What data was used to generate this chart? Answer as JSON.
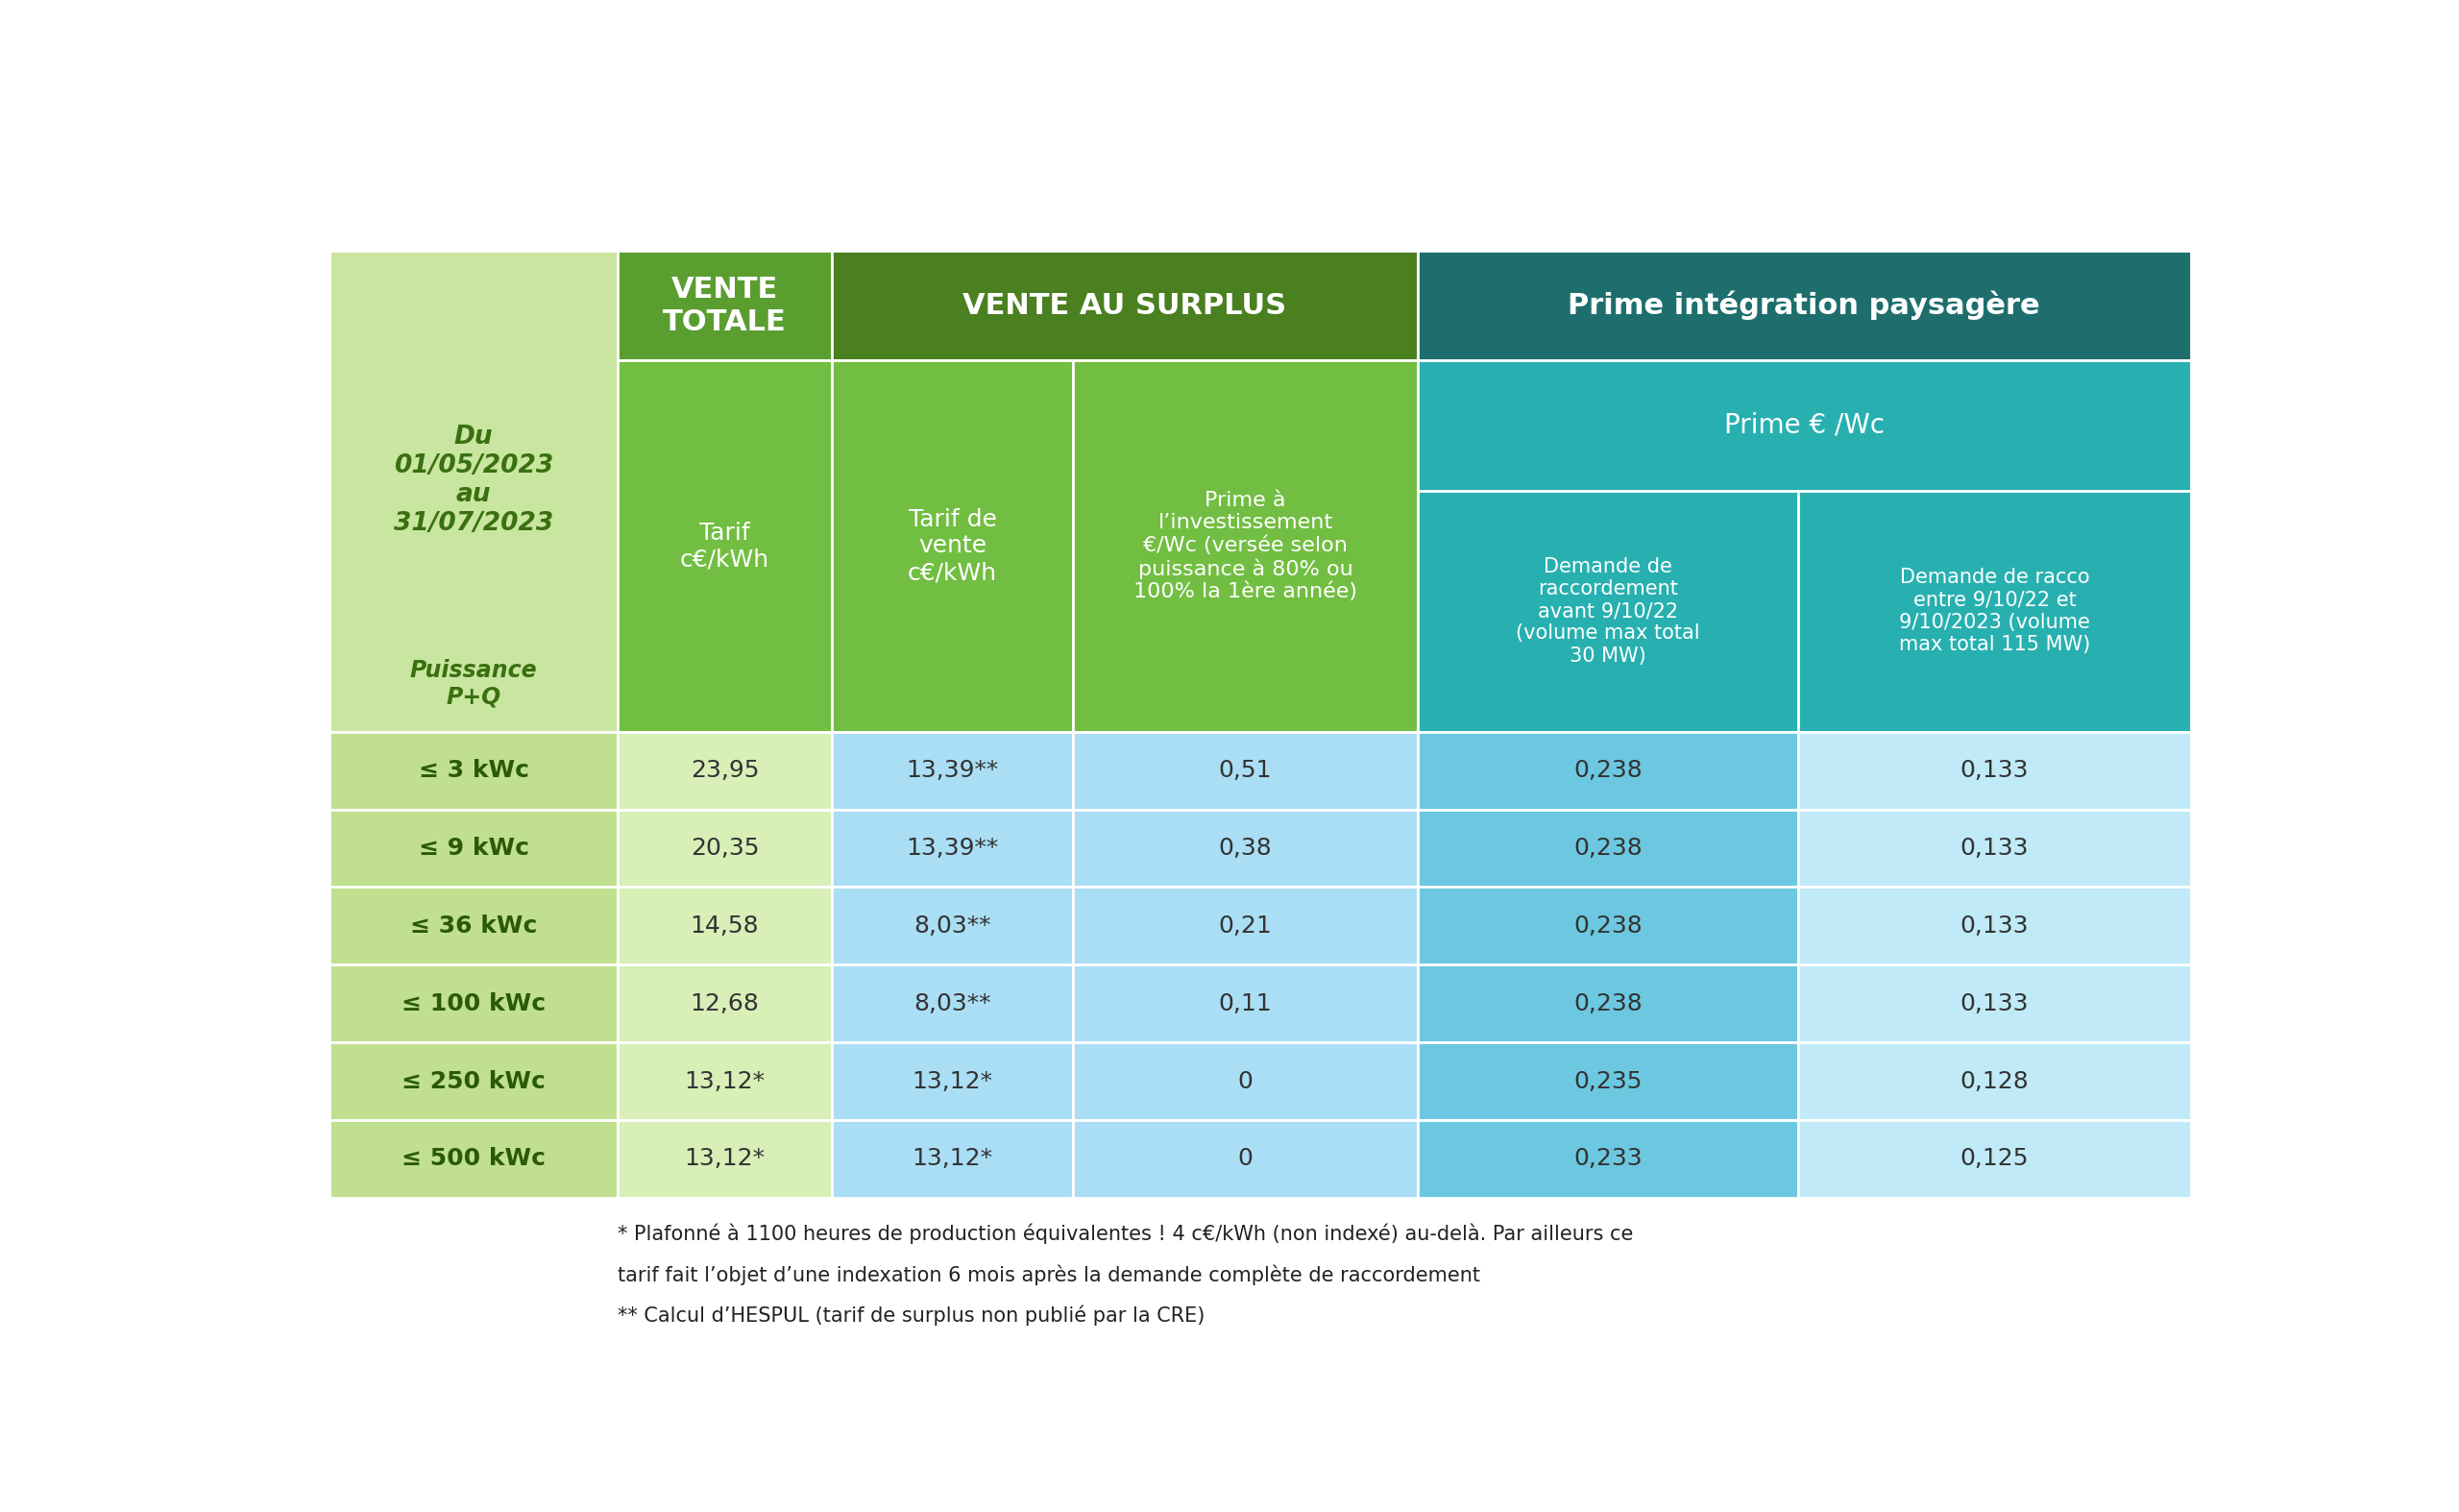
{
  "col1_header": "VENTE\nTOTALE",
  "col23_header": "VENTE AU SURPLUS",
  "col45_header": "Prime intégration paysagère",
  "col1_subheader": "Tarif\nc€/kWh",
  "col2_subheader": "Tarif de\nvente\nc€/kWh",
  "col3_subheader": "Prime à\nl’investissement\n€/Wc (versée selon\npuissance à 80% ou\n100% la 1ère année)",
  "col45_subheader": "Prime € /Wc",
  "col4_subheader": "Demande de\nraccordement\navant 9/10/22\n(volume max total\n30 MW)",
  "col5_subheader": "Demande de racco\nentre 9/10/22 et\n9/10/2023 (volume\nmax total 115 MW)",
  "left_date_text": "Du\n01/05/2023\nau\n31/07/2023",
  "left_power_text": "Puissance\nP+Q",
  "rows": [
    [
      "≤ 3 kWc",
      "23,95",
      "13,39**",
      "0,51",
      "0,238",
      "0,133"
    ],
    [
      "≤ 9 kWc",
      "20,35",
      "13,39**",
      "0,38",
      "0,238",
      "0,133"
    ],
    [
      "≤ 36 kWc",
      "14,58",
      "8,03**",
      "0,21",
      "0,238",
      "0,133"
    ],
    [
      "≤ 100 kWc",
      "12,68",
      "8,03**",
      "0,11",
      "0,238",
      "0,133"
    ],
    [
      "≤ 250 kWc",
      "13,12*",
      "13,12*",
      "0",
      "0,235",
      "0,128"
    ],
    [
      "≤ 500 kWc",
      "13,12*",
      "13,12*",
      "0",
      "0,233",
      "0,125"
    ]
  ],
  "footnote1": "* Plafonné à 1100 heures de production équivalentes ! 4 c€/kWh (non indexé) au-delà. Par ailleurs ce",
  "footnote2": "tarif fait l’objet d’une indexation 6 mois après la demande complète de raccordement",
  "footnote3": "** Calcul d’HESPUL (tarif de surplus non publié par la CRE)",
  "color_left_bg": "#c8e6a0",
  "color_left_text": "#3a7010",
  "color_col1_header_bg": "#5a9e30",
  "color_col1_header_text": "#ffffff",
  "color_vente_header_bg": "#4a8020",
  "color_vente_header_text": "#ffffff",
  "color_prime_header_bg": "#1e6e6e",
  "color_prime_header_text": "#ffffff",
  "color_subheader_green_bg": "#72be42",
  "color_subheader_teal_bg": "#28b0b0",
  "color_subheader_text": "#ffffff",
  "color_data_green_bg": "#d8efb8",
  "color_data_blue_bg": "#aadef5",
  "color_data_teal_bg": "#6cc8e0",
  "color_data_ltblue_bg": "#c0eaf8",
  "color_data_text": "#333333",
  "color_row_label_bg": "#c0e090",
  "color_row_label_text": "#2a5a08",
  "background_color": "#ffffff"
}
